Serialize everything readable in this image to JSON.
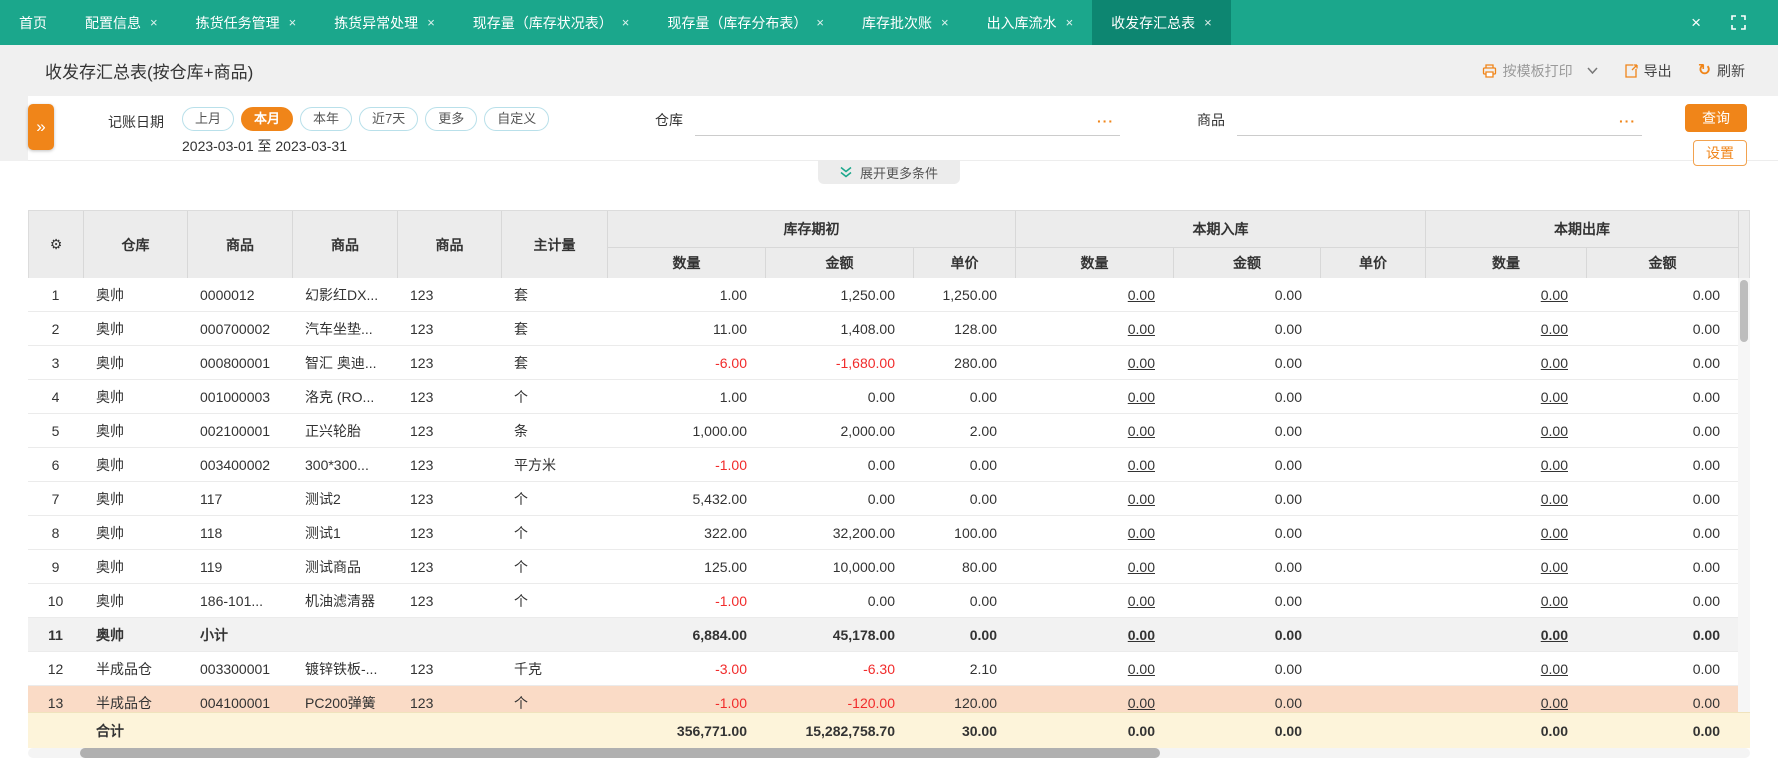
{
  "colors": {
    "teal": "#1ba78c",
    "teal_active": "#0d8671",
    "orange": "#f08519",
    "red": "#f12b2b",
    "hover_bg": "#fadbc6",
    "subtotal_bg": "#f2f2f2",
    "total_bg": "#fdf4da"
  },
  "icons": {
    "close": "×",
    "collapse": "»",
    "ellipsis": "···",
    "gear": "⚙",
    "refresh": "↻"
  },
  "tabbar": {
    "tabs": [
      {
        "label": "首页",
        "closable": false,
        "active": false
      },
      {
        "label": "配置信息",
        "closable": true,
        "active": false
      },
      {
        "label": "拣货任务管理",
        "closable": true,
        "active": false
      },
      {
        "label": "拣货异常处理",
        "closable": true,
        "active": false
      },
      {
        "label": "现存量（库存状况表）",
        "closable": true,
        "active": false
      },
      {
        "label": "现存量（库存分布表）",
        "closable": true,
        "active": false
      },
      {
        "label": "库存批次账",
        "closable": true,
        "active": false
      },
      {
        "label": "出入库流水",
        "closable": true,
        "active": false
      },
      {
        "label": "收发存汇总表",
        "closable": true,
        "active": true
      }
    ]
  },
  "header": {
    "title": "收发存汇总表(按仓库+商品)",
    "print_label": "按模板打印",
    "export_label": "导出",
    "refresh_label": "刷新"
  },
  "filter": {
    "date_label": "记账日期",
    "date_pills": [
      {
        "label": "上月",
        "active": false
      },
      {
        "label": "本月",
        "active": true
      },
      {
        "label": "本年",
        "active": false
      },
      {
        "label": "近7天",
        "active": false
      },
      {
        "label": "更多",
        "active": false
      },
      {
        "label": "自定义",
        "active": false
      }
    ],
    "date_range": "2023-03-01 至 2023-03-31",
    "warehouse_label": "仓库",
    "warehouse_value": "",
    "product_label": "商品",
    "product_value": "",
    "search_button": "查询",
    "settings_button": "设置",
    "expand_label": "展开更多条件"
  },
  "table": {
    "head_left": [
      "",
      "仓库",
      "商品",
      "商品",
      "商品",
      "主计量"
    ],
    "groups": [
      {
        "label": "库存期初",
        "cols": [
          "数量",
          "金额",
          "单价"
        ]
      },
      {
        "label": "本期入库",
        "cols": [
          "数量",
          "金额",
          "单价"
        ]
      },
      {
        "label": "本期出库",
        "cols": [
          "数量",
          "金额"
        ]
      }
    ],
    "rows": [
      {
        "num": "1",
        "text": [
          "奥帅",
          "0000012",
          "幻影红DX...",
          "123",
          "套"
        ],
        "vals": [
          "1.00",
          "1,250.00",
          "1,250.00",
          "0.00",
          "0.00",
          "",
          "0.00",
          "0.00"
        ],
        "neg": []
      },
      {
        "num": "2",
        "text": [
          "奥帅",
          "000700002",
          "汽车坐垫...",
          "123",
          "套"
        ],
        "vals": [
          "11.00",
          "1,408.00",
          "128.00",
          "0.00",
          "0.00",
          "",
          "0.00",
          "0.00"
        ],
        "neg": []
      },
      {
        "num": "3",
        "text": [
          "奥帅",
          "000800001",
          "智汇 奥迪...",
          "123",
          "套"
        ],
        "vals": [
          "-6.00",
          "-1,680.00",
          "280.00",
          "0.00",
          "0.00",
          "",
          "0.00",
          "0.00"
        ],
        "neg": [
          0,
          1
        ]
      },
      {
        "num": "4",
        "text": [
          "奥帅",
          "001000003",
          "洛克 (RO...",
          "123",
          "个"
        ],
        "vals": [
          "1.00",
          "0.00",
          "0.00",
          "0.00",
          "0.00",
          "",
          "0.00",
          "0.00"
        ],
        "neg": []
      },
      {
        "num": "5",
        "text": [
          "奥帅",
          "002100001",
          "正兴轮胎",
          "123",
          "条"
        ],
        "vals": [
          "1,000.00",
          "2,000.00",
          "2.00",
          "0.00",
          "0.00",
          "",
          "0.00",
          "0.00"
        ],
        "neg": []
      },
      {
        "num": "6",
        "text": [
          "奥帅",
          "003400002",
          "300*300...",
          "123",
          "平方米"
        ],
        "vals": [
          "-1.00",
          "0.00",
          "0.00",
          "0.00",
          "0.00",
          "",
          "0.00",
          "0.00"
        ],
        "neg": [
          0
        ]
      },
      {
        "num": "7",
        "text": [
          "奥帅",
          "117",
          "测试2",
          "123",
          "个"
        ],
        "vals": [
          "5,432.00",
          "0.00",
          "0.00",
          "0.00",
          "0.00",
          "",
          "0.00",
          "0.00"
        ],
        "neg": []
      },
      {
        "num": "8",
        "text": [
          "奥帅",
          "118",
          "测试1",
          "123",
          "个"
        ],
        "vals": [
          "322.00",
          "32,200.00",
          "100.00",
          "0.00",
          "0.00",
          "",
          "0.00",
          "0.00"
        ],
        "neg": []
      },
      {
        "num": "9",
        "text": [
          "奥帅",
          "119",
          "测试商品",
          "123",
          "个"
        ],
        "vals": [
          "125.00",
          "10,000.00",
          "80.00",
          "0.00",
          "0.00",
          "",
          "0.00",
          "0.00"
        ],
        "neg": []
      },
      {
        "num": "10",
        "text": [
          "奥帅",
          "186-101...",
          "机油滤清器",
          "123",
          "个"
        ],
        "vals": [
          "-1.00",
          "0.00",
          "0.00",
          "0.00",
          "0.00",
          "",
          "0.00",
          "0.00"
        ],
        "neg": [
          0
        ]
      },
      {
        "num": "11",
        "text": [
          "奥帅",
          "小计",
          "",
          "",
          ""
        ],
        "vals": [
          "6,884.00",
          "45,178.00",
          "0.00",
          "0.00",
          "0.00",
          "",
          "0.00",
          "0.00"
        ],
        "neg": [],
        "type": "sub"
      },
      {
        "num": "12",
        "text": [
          "半成品仓",
          "003300001",
          "镀锌铁板-...",
          "123",
          "千克"
        ],
        "vals": [
          "-3.00",
          "-6.30",
          "2.10",
          "0.00",
          "0.00",
          "",
          "0.00",
          "0.00"
        ],
        "neg": [
          0,
          1
        ]
      },
      {
        "num": "13",
        "text": [
          "半成品仓",
          "004100001",
          "PC200弹簧",
          "123",
          "个"
        ],
        "vals": [
          "-1.00",
          "-120.00",
          "120.00",
          "0.00",
          "0.00",
          "",
          "0.00",
          "0.00"
        ],
        "neg": [
          0,
          1
        ],
        "type": "hot"
      }
    ],
    "total": {
      "label": "合计",
      "vals": [
        "356,771.00",
        "15,282,758.70",
        "30.00",
        "0.00",
        "0.00",
        "",
        "0.00",
        "0.00"
      ]
    }
  }
}
